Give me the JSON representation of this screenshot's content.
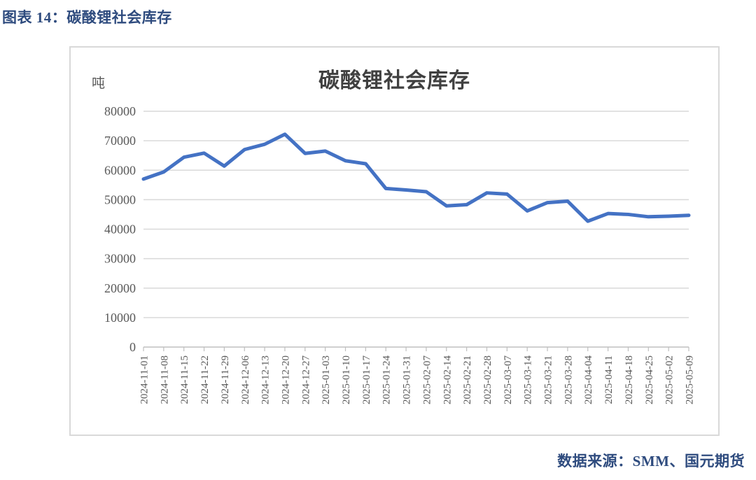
{
  "page": {
    "header": "图表 14：碳酸锂社会库存",
    "source": "数据来源：SMM、国元期货"
  },
  "chart_data": {
    "type": "line",
    "title": "碳酸锂社会库存",
    "unit_label": "吨",
    "xlabel": "",
    "ylabel": "吨",
    "ylim": [
      0,
      80000
    ],
    "ytick_step": 10000,
    "grid": true,
    "legend_position": "none",
    "categories": [
      "2024-11-01",
      "2024-11-08",
      "2024-11-15",
      "2024-11-22",
      "2024-11-29",
      "2024-12-06",
      "2024-12-13",
      "2024-12-20",
      "2024-12-27",
      "2025-01-03",
      "2025-01-10",
      "2025-01-17",
      "2025-01-24",
      "2025-01-31",
      "2025-02-07",
      "2025-02-14",
      "2025-02-21",
      "2025-02-28",
      "2025-03-07",
      "2025-03-14",
      "2025-03-21",
      "2025-03-28",
      "2025-04-04",
      "2025-04-11",
      "2025-04-18",
      "2025-04-25",
      "2025-05-02",
      "2025-05-09"
    ],
    "series": [
      {
        "name": "碳酸锂社会库存",
        "values": [
          57000,
          59400,
          64400,
          65800,
          61400,
          67000,
          68800,
          72200,
          65700,
          66500,
          63200,
          62200,
          53800,
          53300,
          52700,
          47900,
          48300,
          52300,
          51900,
          46200,
          49000,
          49500,
          42700,
          45300,
          45000,
          44200,
          44400,
          44700
        ]
      }
    ],
    "colors": {
      "line": "#4472C4",
      "grid": "#D9D9D9",
      "axis": "#BFBFBF",
      "label": "#595959",
      "title": "#404040",
      "accent": "#2E4B7E",
      "border": "#D9D9D9"
    }
  }
}
